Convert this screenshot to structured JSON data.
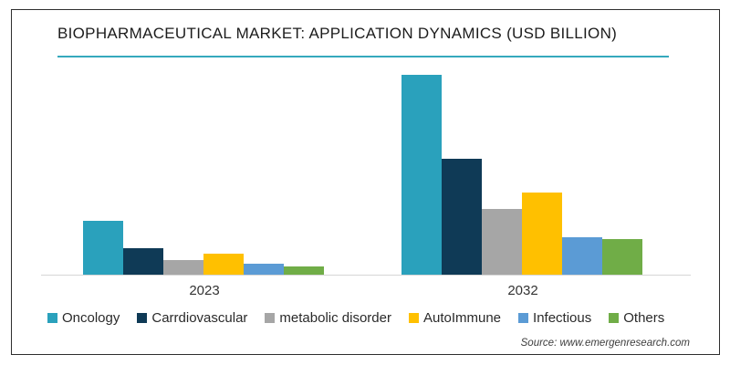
{
  "title": "BIOPHARMACEUTICAL MARKET: APPLICATION DYNAMICS (USD BILLION)",
  "source": "Source: www.emergenresearch.com",
  "accent_color": "#35a9bd",
  "chart_data": {
    "type": "bar",
    "title": "BIOPHARMACEUTICAL MARKET: APPLICATION DYNAMICS (USD BILLION)",
    "categories": [
      "2023",
      "2032"
    ],
    "series": [
      {
        "name": "Oncology",
        "color": "#2aa1bc",
        "values": [
          59,
          219
        ]
      },
      {
        "name": "Carrdiovascular",
        "color": "#0f3a56",
        "values": [
          29,
          127
        ]
      },
      {
        "name": "metabolic disorder",
        "color": "#a6a6a6",
        "values": [
          16,
          72
        ]
      },
      {
        "name": "AutoImmune",
        "color": "#ffc000",
        "values": [
          23,
          90
        ]
      },
      {
        "name": "Infectious",
        "color": "#5b9bd5",
        "values": [
          12,
          41
        ]
      },
      {
        "name": "Others",
        "color": "#70ad47",
        "values": [
          9,
          39
        ]
      }
    ],
    "xlabel": "",
    "ylabel": "",
    "ylim": [
      0,
      220
    ],
    "y_axis_shown": false,
    "grid": false,
    "legend_position": "bottom"
  }
}
